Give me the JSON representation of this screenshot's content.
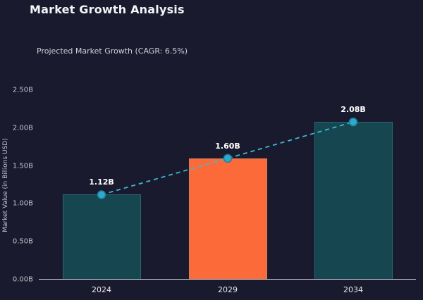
{
  "header": {
    "title": "Market Growth Analysis",
    "subtitle": "Projected Market Growth (CAGR: 6.5%)"
  },
  "chart_data": {
    "type": "bar",
    "title": "Market Growth Analysis",
    "subtitle": "Projected Market Growth (CAGR: 6.5%)",
    "categories": [
      "2024",
      "2029",
      "2034"
    ],
    "values": [
      1.12,
      1.6,
      2.08
    ],
    "value_labels": [
      "1.12B",
      "1.60B",
      "2.08B"
    ],
    "bar_colors": [
      "#164751",
      "#fb6a38",
      "#164751"
    ],
    "bar_border_color": "rgba(90, 200, 220, 0.25)",
    "xlabel": "",
    "ylabel": "Market Value (in Billions USD)",
    "ylim": [
      0,
      2.5
    ],
    "ytick_values": [
      0,
      0.5,
      1.0,
      1.5,
      2.0,
      2.5
    ],
    "ytick_labels": [
      "0.00B",
      "0.50B",
      "1.00B",
      "1.50B",
      "2.00B",
      "2.50B"
    ],
    "grid": false,
    "legend": false,
    "trend_line": {
      "style": "dashed",
      "color": "#3fb9d3",
      "marker_fill": "#2fa9c9",
      "marker_stroke": "#1d7fa0"
    }
  },
  "colors": {
    "background": "#1a1a2e",
    "axis": "#dcdce4",
    "title_text": "#f5f5f7",
    "muted_text": "#c4c4cf"
  }
}
